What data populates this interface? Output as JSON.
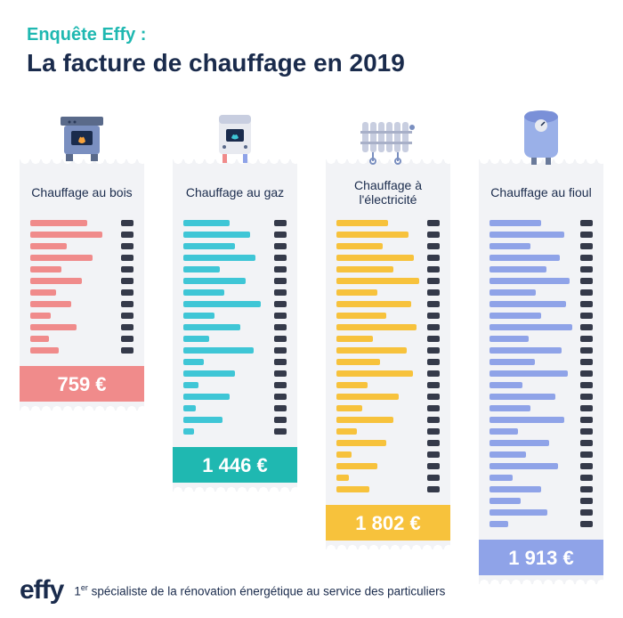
{
  "colors": {
    "teal": "#1fb8b1",
    "navy": "#1a2b4c",
    "receipt_bg": "#f2f3f6",
    "bar_right": "#353a4a"
  },
  "header": {
    "subtitle": "Enquête Effy :",
    "title": "La facture de chauffage en 2019"
  },
  "categories": [
    {
      "label": "Chauffage au bois",
      "price": "759 €",
      "color": "#f08b8b",
      "price_bg": "#f08b8b",
      "bars": [
        55,
        70,
        35,
        60,
        30,
        50,
        25,
        40,
        20,
        45,
        18,
        28
      ],
      "icon": "wood"
    },
    {
      "label": "Chauffage au gaz",
      "price": "1 446 €",
      "color": "#3fc6d6",
      "price_bg": "#1fb8b1",
      "bars": [
        45,
        65,
        50,
        70,
        35,
        60,
        40,
        75,
        30,
        55,
        25,
        68,
        20,
        50,
        15,
        45,
        12,
        38,
        10
      ],
      "icon": "gas"
    },
    {
      "label": "Chauffage à l'électricité",
      "price": "1 802 €",
      "color": "#f7c23c",
      "price_bg": "#f7c23c",
      "bars": [
        50,
        70,
        45,
        75,
        55,
        80,
        40,
        72,
        48,
        78,
        35,
        68,
        42,
        74,
        30,
        60,
        25,
        55,
        20,
        48,
        15,
        40,
        12,
        32
      ],
      "icon": "electric"
    },
    {
      "label": "Chauffage au fioul",
      "price": "1 913 €",
      "color": "#8fa3e8",
      "price_bg": "#8fa3e8",
      "bars": [
        50,
        72,
        40,
        68,
        55,
        78,
        45,
        74,
        50,
        80,
        38,
        70,
        44,
        76,
        32,
        64,
        40,
        72,
        28,
        58,
        35,
        66,
        22,
        50,
        30,
        56,
        18
      ],
      "icon": "fuel"
    }
  ],
  "footer": {
    "logo": "effy",
    "tagline_prefix": "1",
    "tagline_sup": "er",
    "tagline_rest": " spécialiste de la rénovation énergétique au service des particuliers"
  }
}
